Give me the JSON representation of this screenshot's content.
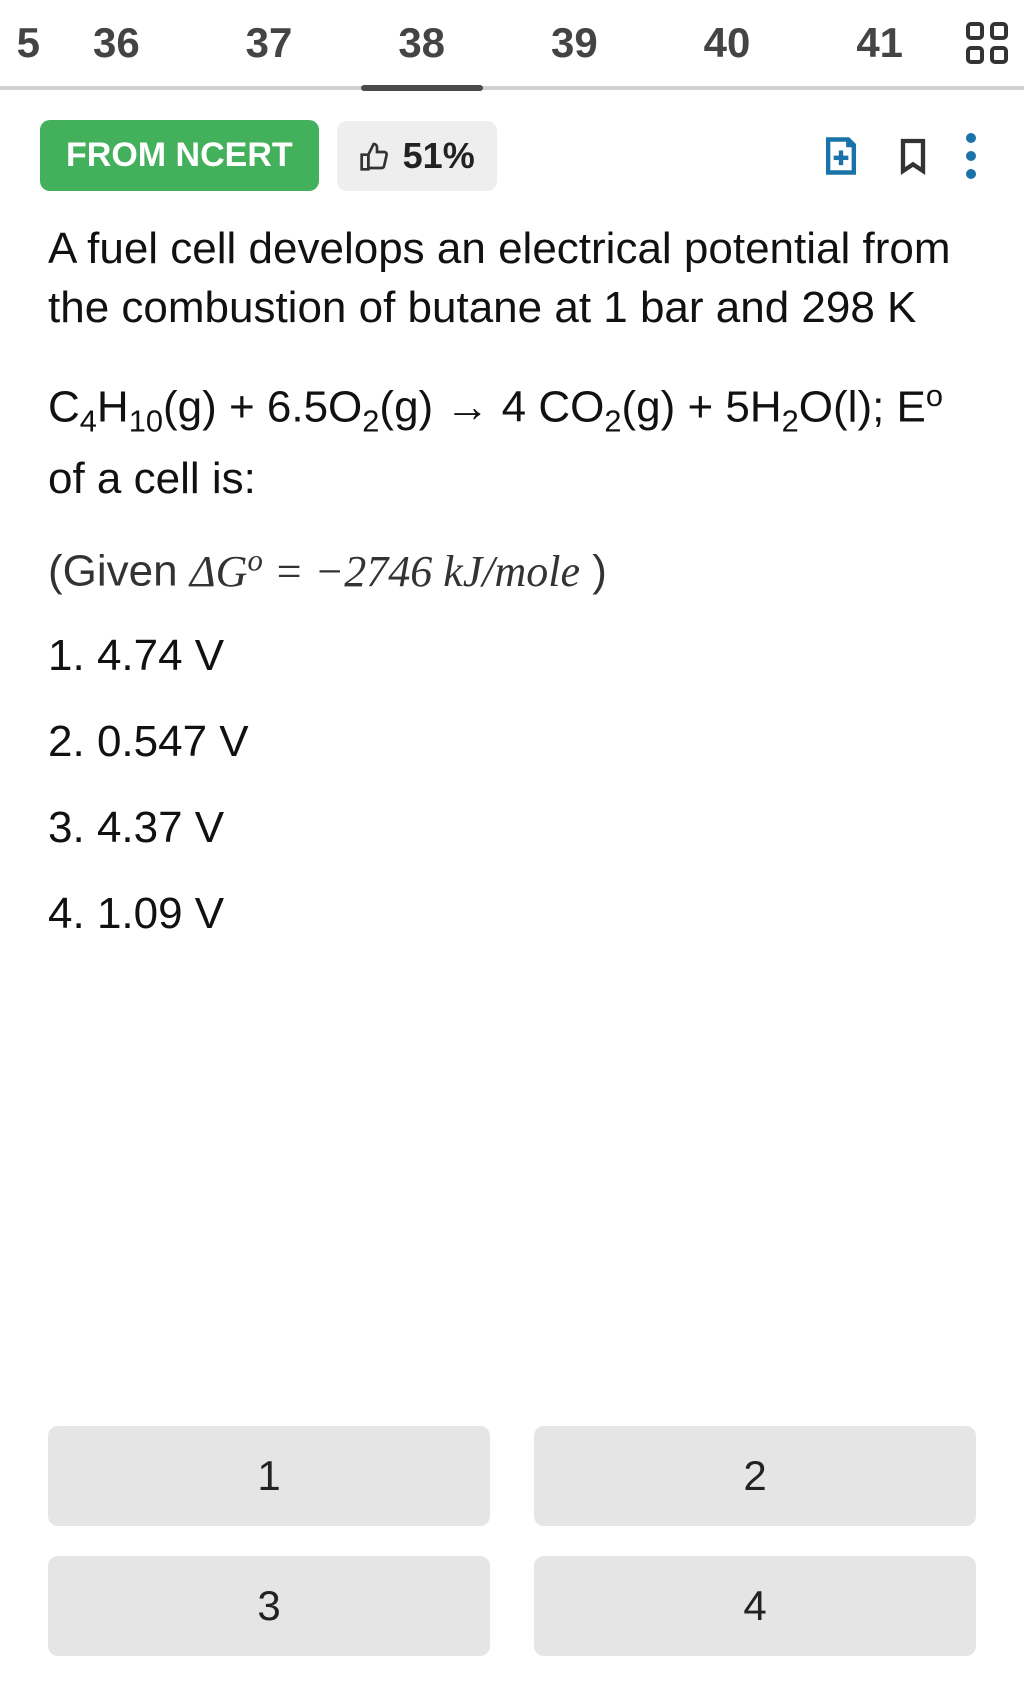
{
  "tabs": {
    "partial": "5",
    "items": [
      "36",
      "37",
      "38",
      "39",
      "40",
      "41"
    ],
    "active_index": 2
  },
  "meta": {
    "badge_label": "FROM NCERT",
    "like_percent": "51%"
  },
  "question": {
    "text": "A fuel cell develops an electrical potential from the combustion of butane at 1 bar and 298 K",
    "equation_html": "C<sub>4</sub>H<sub>10</sub>(g) + 6.5O<sub>2</sub>(g) → 4 CO<sub>2</sub>(g) + 5H<sub>2</sub>O(l); E<sup>o</sup>&nbsp; of a cell is:",
    "given_html": "(Given <span class='math'>ΔG<sup>o</sup> = −2746 kJ/mole</span> )",
    "options": [
      {
        "n": "1",
        "text": "4.74 V"
      },
      {
        "n": "2",
        "text": "0.547 V"
      },
      {
        "n": "3",
        "text": "4.37 V"
      },
      {
        "n": "4",
        "text": "1.09 V"
      }
    ]
  },
  "answer_buttons": [
    "1",
    "2",
    "3",
    "4"
  ],
  "colors": {
    "badge_bg": "#43b05c",
    "accent": "#1a73a8",
    "answer_bg": "#e5e5e5"
  }
}
